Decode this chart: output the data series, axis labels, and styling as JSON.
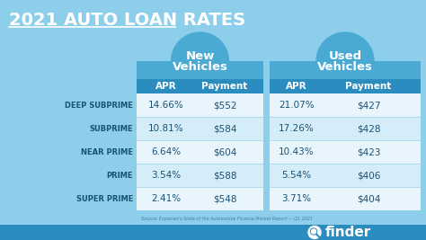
{
  "title": "2021 AUTO LOAN RATES",
  "bg_color": "#8dcfea",
  "table_bg_med": "#4aaad4",
  "table_bg_light": "#d4edf8",
  "table_bg_lighter": "#e8f5fc",
  "table_header_dark": "#2b8cbf",
  "bubble_color": "#4aaad4",
  "row_labels": [
    "DEEP SUBPRIME",
    "SUBPRIME",
    "NEAR PRIME",
    "PRIME",
    "SUPER PRIME"
  ],
  "new_apr": [
    "14.66%",
    "10.81%",
    "6.64%",
    "3.54%",
    "2.41%"
  ],
  "new_payment": [
    "$552",
    "$584",
    "$604",
    "$588",
    "$548"
  ],
  "used_apr": [
    "21.07%",
    "17.26%",
    "10.43%",
    "5.54%",
    "3.71%"
  ],
  "used_payment": [
    "$427",
    "$428",
    "$423",
    "$406",
    "$404"
  ],
  "source_text": "Source: Experian's State of the Automotive Finance Market Report — Q1 2021",
  "finder_bar_color": "#2b8cbf",
  "white": "#ffffff",
  "label_color": "#1a5276",
  "data_color": "#1a5276",
  "row_alt_color": "#bce0f0",
  "divider_color": "#9ecfe8"
}
